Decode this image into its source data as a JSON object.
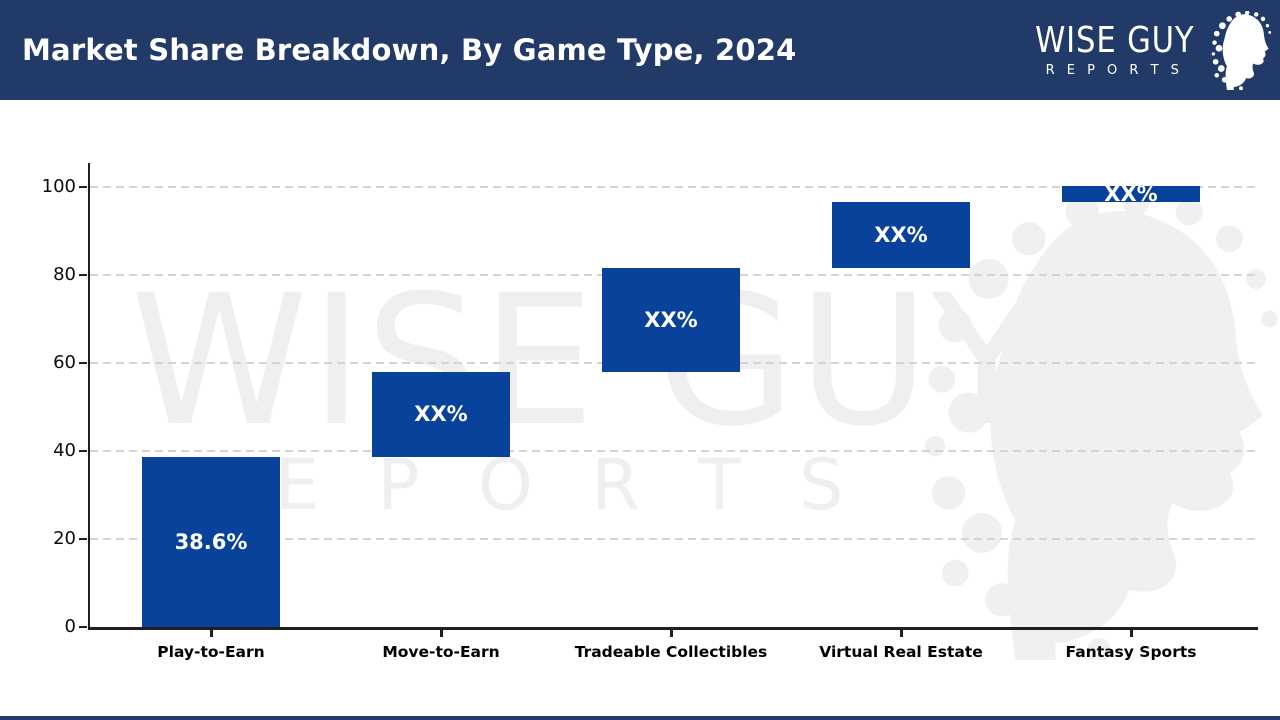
{
  "header": {
    "title": "Market Share Breakdown, By Game Type, 2024",
    "logo": {
      "name": "WISE GUY",
      "sub": "R E P O R T S"
    }
  },
  "watermark": {
    "name": "WISE GUY",
    "sub": "R E P O R T S"
  },
  "chart_data": {
    "type": "bar",
    "subtype": "waterfall",
    "title": "Market Share Breakdown, By Game Type, 2024",
    "categories": [
      "Play-to-Earn",
      "Move-to-Earn",
      "Tradeable Collectibles",
      "Virtual Real Estate",
      "Fantasy Sports"
    ],
    "segments": [
      {
        "category": "Play-to-Earn",
        "label": "38.6%",
        "start": 0,
        "end": 38.6
      },
      {
        "category": "Move-to-Earn",
        "label": "XX%",
        "start": 38.6,
        "end": 58.0
      },
      {
        "category": "Tradeable Collectibles",
        "label": "XX%",
        "start": 58.0,
        "end": 81.5
      },
      {
        "category": "Virtual Real Estate",
        "label": "XX%",
        "start": 81.5,
        "end": 96.5
      },
      {
        "category": "Fantasy Sports",
        "label": "XX%",
        "start": 96.5,
        "end": 100.3
      }
    ],
    "yticks": [
      0,
      20,
      40,
      60,
      80,
      100
    ],
    "ylim": [
      0,
      105
    ],
    "xlabel": "",
    "ylabel": "",
    "grid": "horizontal-dashed",
    "legend": "none"
  },
  "colors": {
    "header_bg": "#223a68",
    "footer_bg": "#223a68",
    "bar": "#08429b",
    "bar_label": "#ffffff",
    "bar_label_overflow_dark": "#121d33",
    "grid": "#d4d4d4",
    "axis": "#1f1f1f",
    "watermark": "#efeff2"
  }
}
